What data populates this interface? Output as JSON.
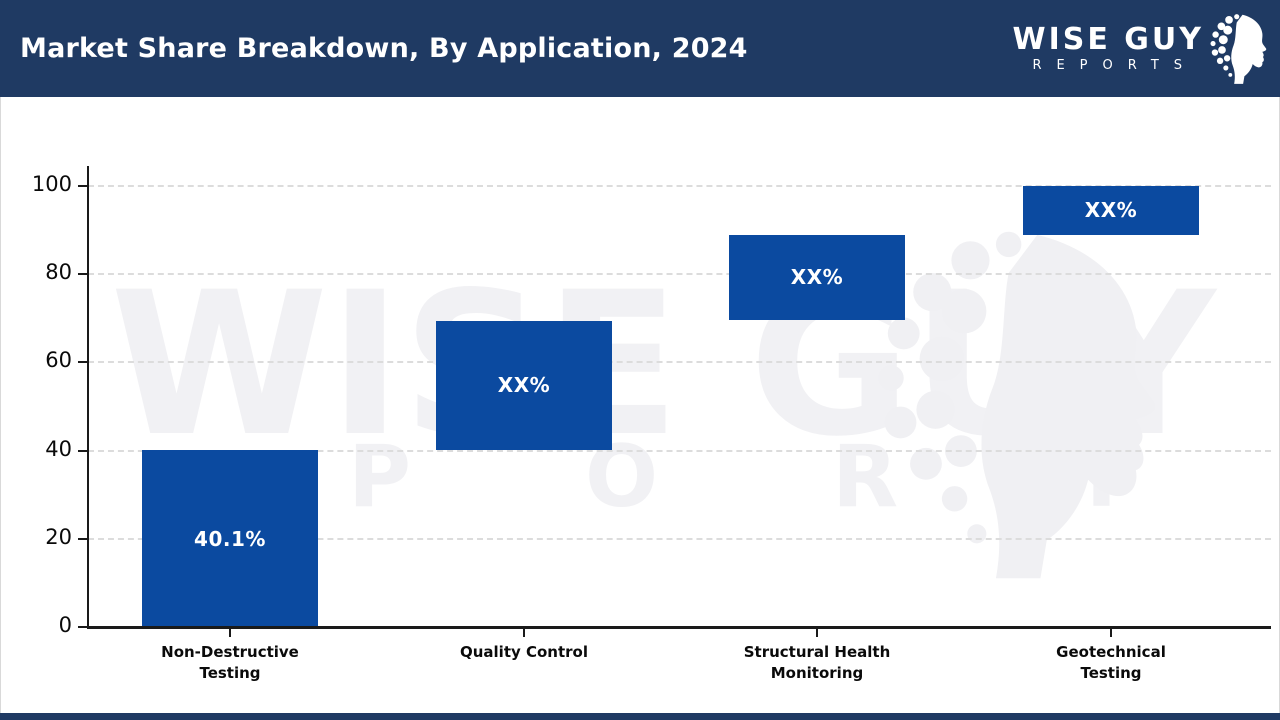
{
  "header": {
    "title": "Market Share Breakdown, By Application, 2024",
    "bg_color": "#1f3a63",
    "text_color": "#ffffff"
  },
  "logo": {
    "line1": "WISE GUY",
    "line2": "REPORTS",
    "head_icon": "dotted-face-profile"
  },
  "watermark": {
    "line1": "WISE GUY",
    "line2": "P O R T S",
    "head_icon": "dotted-face-profile",
    "color": "#f1f1f4"
  },
  "chart_data": {
    "type": "bar",
    "subtype": "waterfall",
    "title": "Market Share Breakdown, By Application, 2024",
    "categories": [
      "Non-Destructive\nTesting",
      "Quality Control",
      "Structural Health\nMonitoring",
      "Geotechnical\nTesting"
    ],
    "segments": [
      {
        "category": "Non-Destructive Testing",
        "start": 0,
        "end": 40.1,
        "value": 40.1,
        "label": "40.1%"
      },
      {
        "category": "Quality Control",
        "start": 40.1,
        "end": 69.5,
        "value": 29.4,
        "label": "XX%"
      },
      {
        "category": "Structural Health Monitoring",
        "start": 69.5,
        "end": 89.0,
        "value": 19.5,
        "label": "XX%"
      },
      {
        "category": "Geotechnical Testing",
        "start": 89.0,
        "end": 100,
        "value": 11.0,
        "label": "XX%"
      }
    ],
    "xlabel": "",
    "ylabel": "",
    "ylim": [
      0,
      100
    ],
    "yticks": [
      0,
      20,
      40,
      60,
      80,
      100
    ],
    "grid": "horizontal-dashed",
    "legend": "none",
    "bar_color": "#0b4aa0",
    "value_label_color": "#ffffff"
  }
}
